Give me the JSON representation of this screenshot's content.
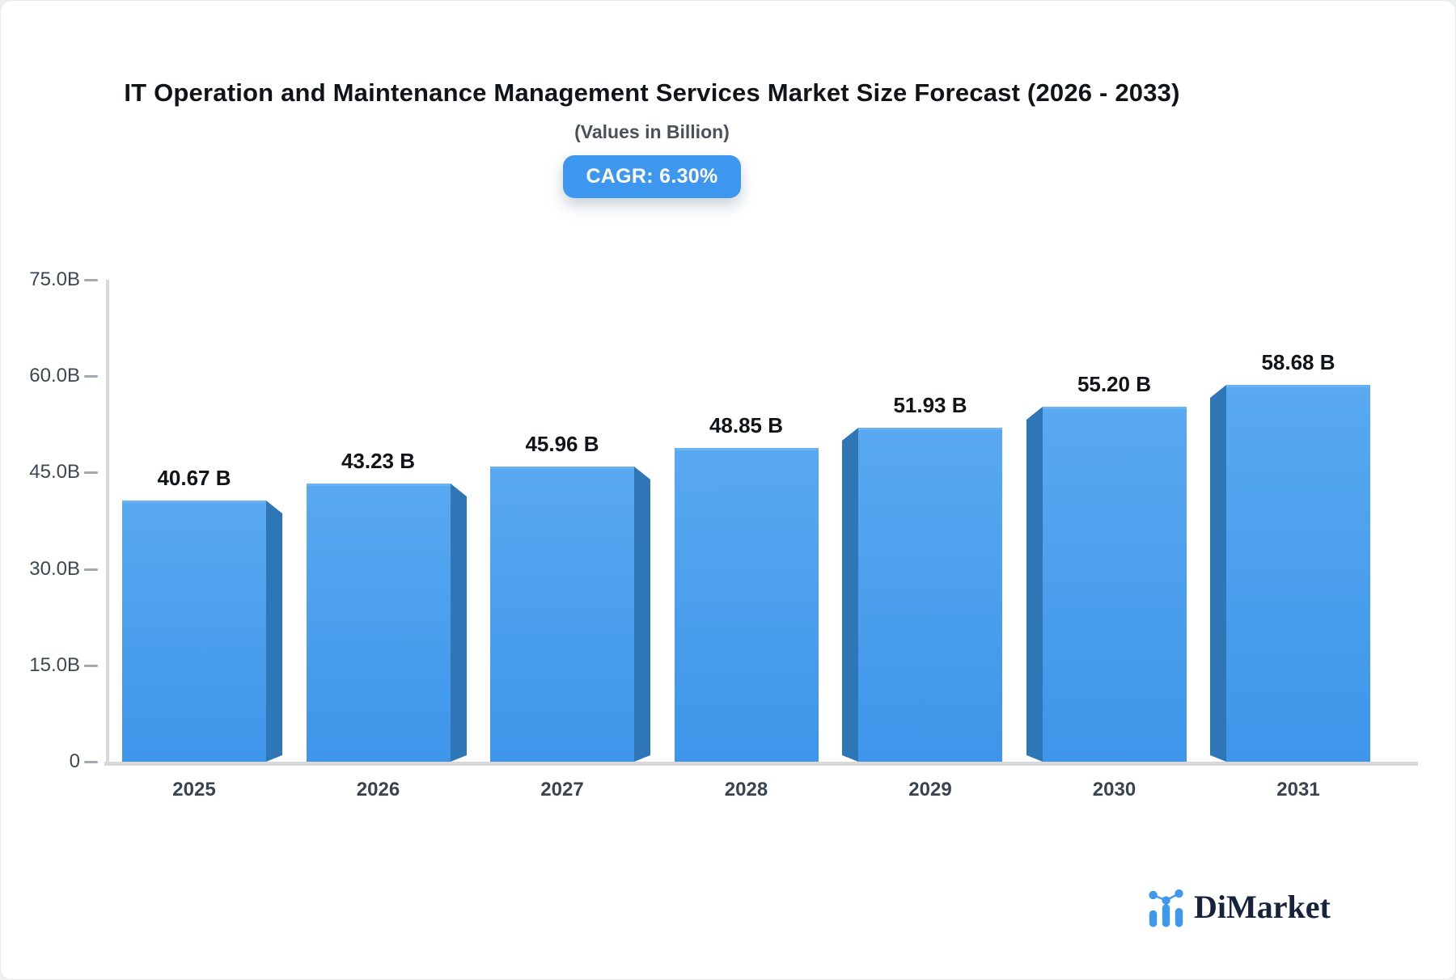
{
  "header": {
    "title": "IT Operation and Maintenance Management Services Market Size Forecast (2026 - 2033)",
    "subtitle": "(Values in Billion)",
    "cagr_label": "CAGR: 6.30%"
  },
  "brand": {
    "name": "DiMarket"
  },
  "colors": {
    "bar_face_top": "#58a9f0",
    "bar_face_bottom": "#3e95ea",
    "bar_top_highlight": "#6ab2f3",
    "bar_side": "#2e76b6",
    "badge_bg": "#3e97ee",
    "axis_line": "#d7d8dc",
    "tick_dash": "#a2a9b1",
    "axis_label": "#3d4751",
    "title_text": "#101418",
    "logo_blue": "#3f98ef",
    "logo_text": "#17233c"
  },
  "chart_data": {
    "type": "bar",
    "title": "IT Operation and Maintenance Management Services Market Size Forecast (2026 - 2033)",
    "subtitle": "(Values in Billion)",
    "annotation": "CAGR: 6.30%",
    "categories": [
      "2025",
      "2026",
      "2027",
      "2028",
      "2029",
      "2030",
      "2031"
    ],
    "values": [
      40.67,
      43.23,
      45.96,
      48.85,
      51.93,
      55.2,
      58.68
    ],
    "value_labels": [
      "40.67 B",
      "43.23 B",
      "45.96 B",
      "48.85 B",
      "51.93 B",
      "55.20 B",
      "58.68 B"
    ],
    "y_ticks": [
      {
        "label": "75.0B",
        "value": 75
      },
      {
        "label": "60.0B",
        "value": 60
      },
      {
        "label": "45.0B",
        "value": 45
      },
      {
        "label": "30.0B",
        "value": 30
      },
      {
        "label": "15.0B",
        "value": 15
      },
      {
        "label": "0",
        "value": 0
      }
    ],
    "ylim": [
      0,
      75
    ],
    "grid": false,
    "legend": null
  }
}
